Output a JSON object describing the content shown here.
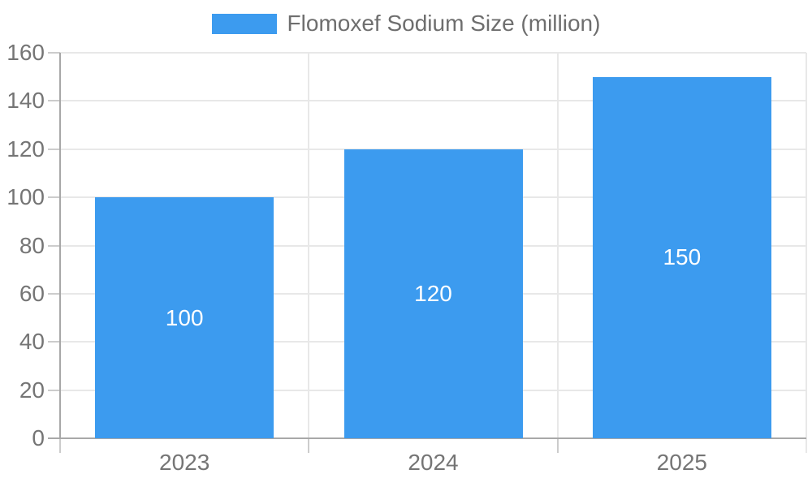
{
  "legend": {
    "label": "Flomoxef Sodium Size (million)"
  },
  "colors": {
    "bar": "#3C9BEF",
    "axis_line": "#a8a8a8",
    "grid_line": "#e8e8e8",
    "tick_line": "#cccccc",
    "axis_text": "#757575",
    "legend_text": "#6e6e6e",
    "value_text": "#ffffff",
    "background": "#ffffff"
  },
  "chart_data": {
    "type": "bar",
    "categories": [
      "2023",
      "2024",
      "2025"
    ],
    "series": [
      {
        "name": "Flomoxef Sodium Size (million)",
        "values": [
          100,
          120,
          150
        ]
      }
    ],
    "value_labels": [
      100,
      120,
      150
    ],
    "value_label_position": "inside-center",
    "title": "",
    "xlabel": "",
    "ylabel": "",
    "ylim": [
      0,
      160
    ],
    "yticks": [
      0,
      20,
      40,
      60,
      80,
      100,
      120,
      140,
      160
    ],
    "grid": true,
    "legend_position": "top-center"
  }
}
